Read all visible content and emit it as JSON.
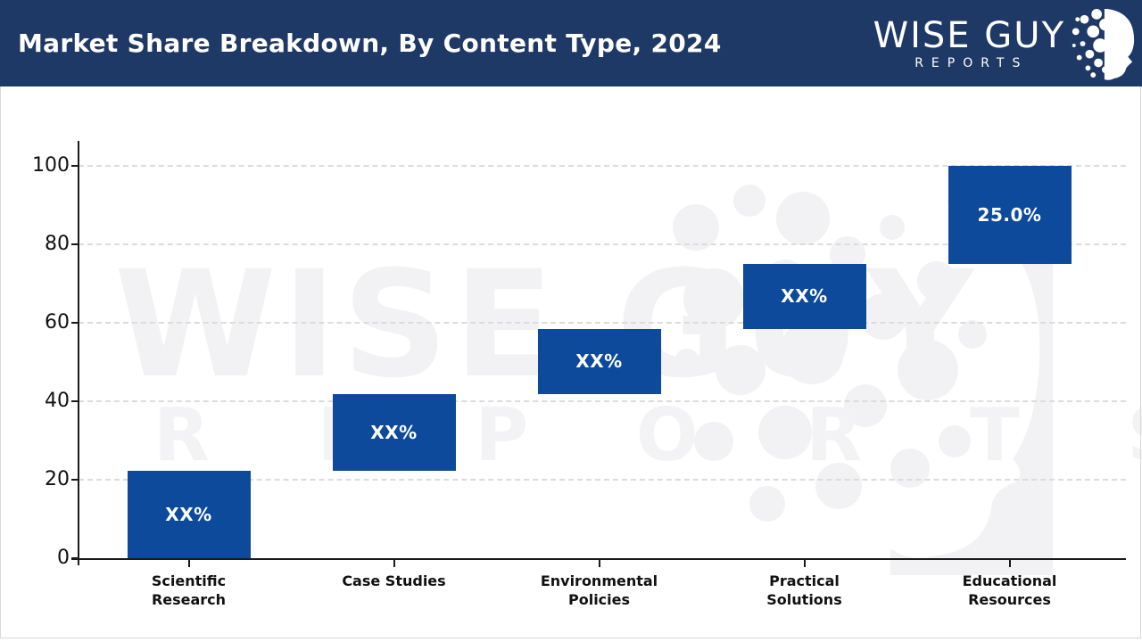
{
  "header": {
    "title": "Market Share Breakdown, By Content Type, 2024",
    "bg_color": "#1f3966",
    "logo": {
      "name": "WISE GUY",
      "sub": "REPORTS"
    }
  },
  "watermark": {
    "line1": "WISE GUY",
    "line2": "R E P O R T S"
  },
  "chart_data": {
    "type": "bar",
    "subtype": "floating-waterfall",
    "title": "Market Share Breakdown, By Content Type, 2024",
    "categories": [
      "Scientific Research",
      "Case Studies",
      "Environmental Policies",
      "Practical Solutions",
      "Educational Resources"
    ],
    "category_lines": [
      [
        "Scientific",
        "Research"
      ],
      [
        "Case Studies"
      ],
      [
        "Environmental",
        "Policies"
      ],
      [
        "Practical",
        "Solutions"
      ],
      [
        "Educational",
        "Resources"
      ]
    ],
    "segments": [
      {
        "category": "Scientific Research",
        "start": 0,
        "end": 22.3,
        "label": "XX%"
      },
      {
        "category": "Case Studies",
        "start": 22.3,
        "end": 41.8,
        "label": "XX%"
      },
      {
        "category": "Environmental Policies",
        "start": 41.8,
        "end": 58.5,
        "label": "XX%"
      },
      {
        "category": "Practical Solutions",
        "start": 58.5,
        "end": 75.0,
        "label": "XX%"
      },
      {
        "category": "Educational Resources",
        "start": 75.0,
        "end": 100.0,
        "label": "25.0%"
      }
    ],
    "yticks": [
      0,
      20,
      40,
      60,
      80,
      100
    ],
    "ylim": [
      0,
      106
    ],
    "bar_color": "#0d4a9c",
    "bar_label_color": "#ffffff",
    "grid": {
      "horizontal": true,
      "style": "dashed",
      "color": "#dcdcdc"
    },
    "legend": null
  }
}
